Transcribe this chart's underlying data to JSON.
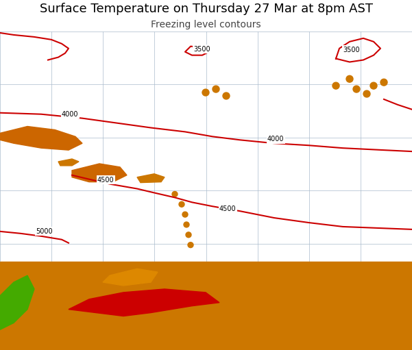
{
  "title": "Surface Temperature on Thursday 27 Mar at 8pm AST",
  "subtitle": "Freezing level contours",
  "title_fontsize": 13,
  "subtitle_fontsize": 10,
  "bg_color": "#c8d8e8",
  "map_bg_color": "#b8cfe0",
  "border_color": "#888888",
  "title_area_color": "#ffffff",
  "fig_width": 6.01,
  "fig_height": 5.11,
  "dpi": 100,
  "contour_color": "#cc0000",
  "contour_labels": [
    "3500",
    "3500",
    "4000",
    "4000",
    "4500",
    "4500",
    "5000"
  ],
  "grid_color": "#aabbcc",
  "land_colors": {
    "ocean": "#b8cfe0",
    "warm_land": "#cc6600",
    "hot_land": "#cc0000",
    "moderate_land": "#dd8800"
  }
}
